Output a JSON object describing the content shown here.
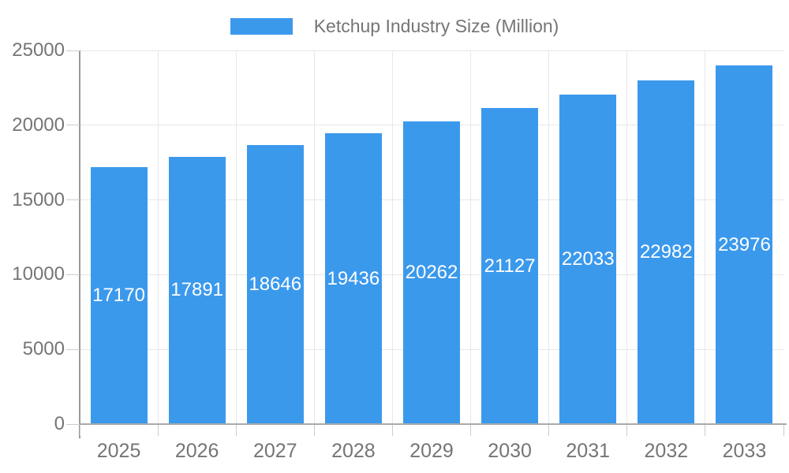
{
  "legend": {
    "label": "Ketchup Industry Size (Million)"
  },
  "colors": {
    "bar": "#3B99EC",
    "bar_label": "#FFFFFF",
    "axis_text": "#757575",
    "y_axis_line": "#999999",
    "x_axis_line": "#AAAAAA",
    "gridline": "#E7E7E7",
    "tick": "#CCCCCC",
    "background": "#FFFFFF"
  },
  "chart_data": {
    "type": "bar",
    "title": "Ketchup Industry Size (Million)",
    "categories": [
      "2025",
      "2026",
      "2027",
      "2028",
      "2029",
      "2030",
      "2031",
      "2032",
      "2033"
    ],
    "values": [
      17170,
      17891,
      18646,
      19436,
      20262,
      21127,
      22033,
      22982,
      23976
    ],
    "bar_value_labels": [
      "17170",
      "17891",
      "18646",
      "19436",
      "20262",
      "21127",
      "22033",
      "22982",
      "23976"
    ],
    "xlabel": "",
    "ylabel": "",
    "ylim": [
      0,
      25000
    ],
    "yticks": [
      0,
      5000,
      10000,
      15000,
      20000,
      25000
    ],
    "ytick_labels": [
      "0",
      "5000",
      "10000",
      "15000",
      "20000",
      "25000"
    ],
    "grid": true,
    "legend_position": "top",
    "value_labels": "inside-center"
  }
}
